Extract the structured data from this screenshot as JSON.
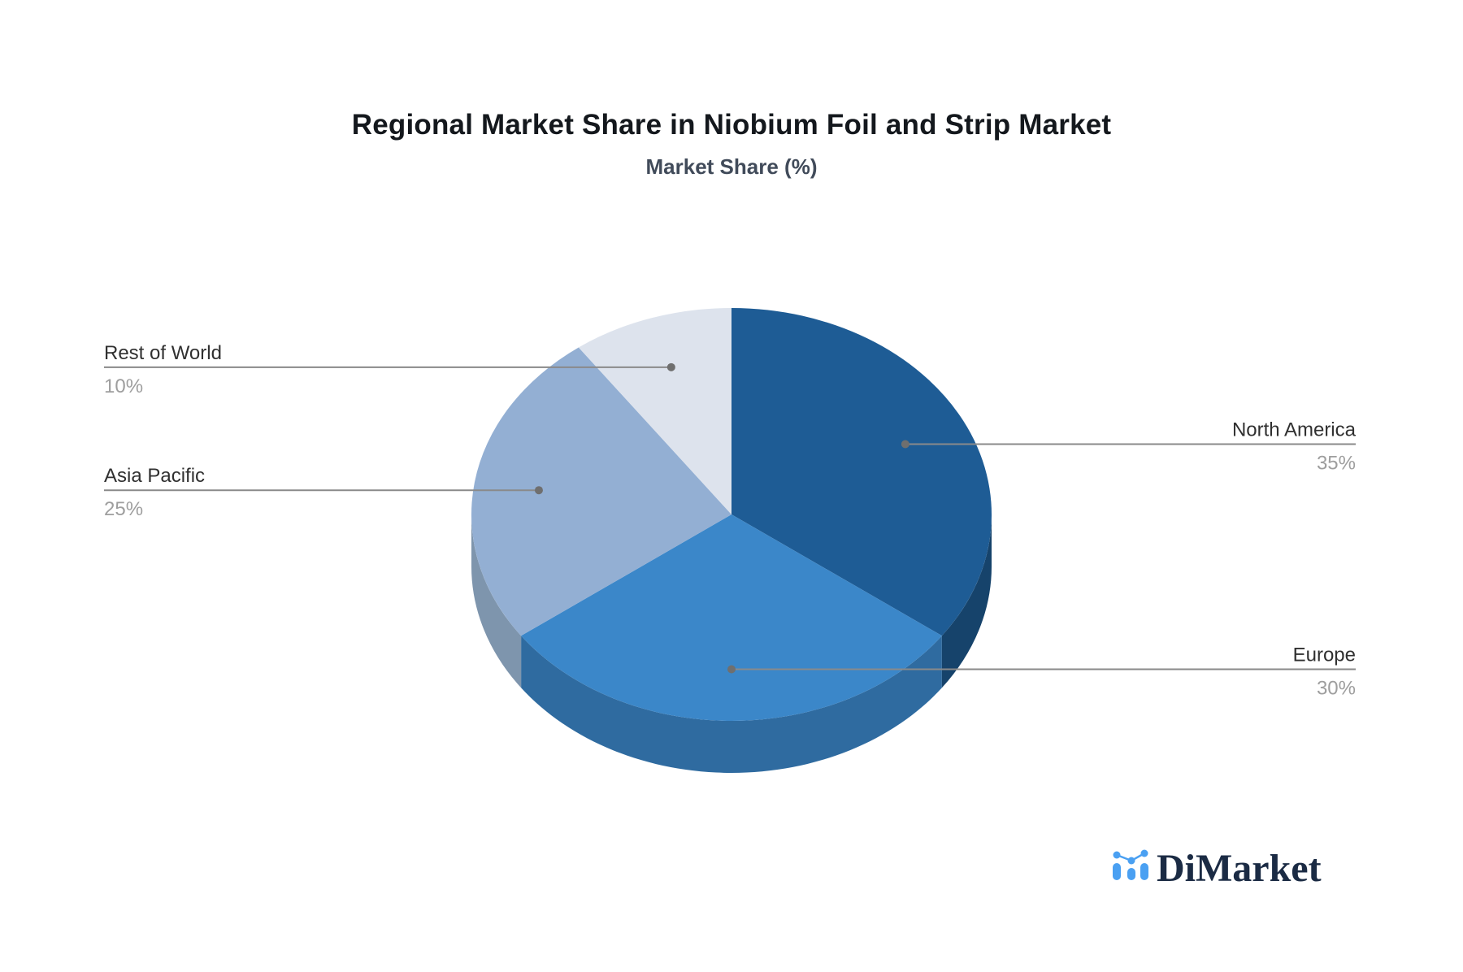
{
  "header": {
    "title": "Regional Market Share in Niobium Foil and Strip Market",
    "subtitle": "Market Share (%)",
    "title_color": "#14181d",
    "subtitle_color": "#414b5a"
  },
  "chart_data": {
    "type": "pie",
    "style": "3d",
    "title": "Regional Market Share in Niobium Foil and Strip Market",
    "subtitle": "Market Share (%)",
    "unit": "%",
    "start_angle": "12-oclock",
    "direction": "clockwise",
    "legend_position": "none",
    "labels_layout": "callouts",
    "slices": [
      {
        "label": "North America",
        "value": 35,
        "display_value": "35%",
        "color": "#1e5c95",
        "side_color": "#16436b"
      },
      {
        "label": "Europe",
        "value": 30,
        "display_value": "30%",
        "color": "#3b87c9",
        "side_color": "#2f6ba0"
      },
      {
        "label": "Asia Pacific",
        "value": 25,
        "display_value": "25%",
        "color": "#93afd3",
        "side_color": "#7e95ad"
      },
      {
        "label": "Rest of World",
        "value": 10,
        "display_value": "10%",
        "color": "#dde3ed",
        "side_color": "#c6cfdc"
      }
    ]
  },
  "callouts": {
    "line_color": "#8a8a8a",
    "dot_color": "#6f6f6f",
    "label_color": "#303030",
    "value_color": "#9e9e9e"
  },
  "logo": {
    "text": "DiMarket",
    "text_color": "#1b2b44",
    "icon_color": "#4aa0f2",
    "icon": "bar-chart-with-trend-dots"
  }
}
